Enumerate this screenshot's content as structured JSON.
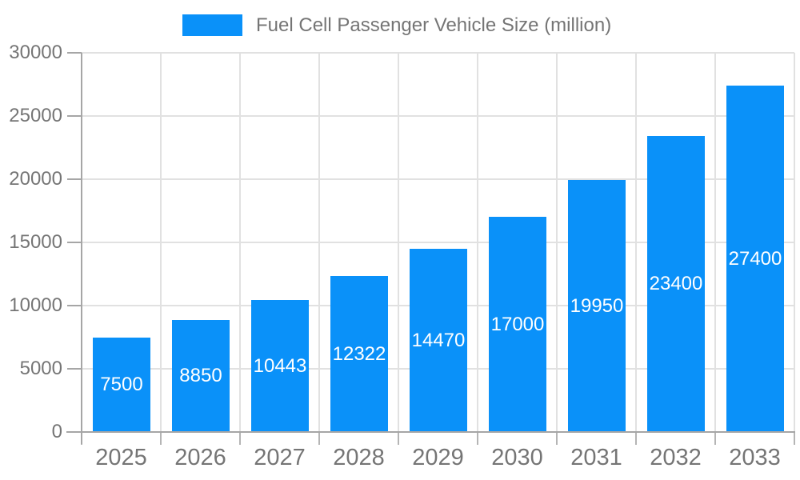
{
  "legend": {
    "label": "Fuel Cell Passenger Vehicle Size (million)"
  },
  "chart_data": {
    "type": "bar",
    "title": "Fuel Cell Passenger Vehicle Size (million)",
    "categories": [
      "2025",
      "2026",
      "2027",
      "2028",
      "2029",
      "2030",
      "2031",
      "2032",
      "2033"
    ],
    "values": [
      7500,
      8850,
      10443,
      12322,
      14470,
      17000,
      19950,
      23400,
      27400
    ],
    "xlabel": "",
    "ylabel": "",
    "ylim": [
      0,
      30000
    ],
    "ytick_step": 5000,
    "ytick_labels": [
      "0",
      "5000",
      "10000",
      "15000",
      "20000",
      "25000",
      "30000"
    ],
    "grid": true,
    "legend_position": "top",
    "value_labels": "inside-center",
    "colors": {
      "bar": "#0A91F9",
      "axis_text": "#757575",
      "value_text": "#FFFFFF",
      "gridline": "#E1E1E1",
      "axis_line": "#A6A6A6",
      "tick": "#B5B5B5",
      "background": "#FFFFFF"
    }
  }
}
